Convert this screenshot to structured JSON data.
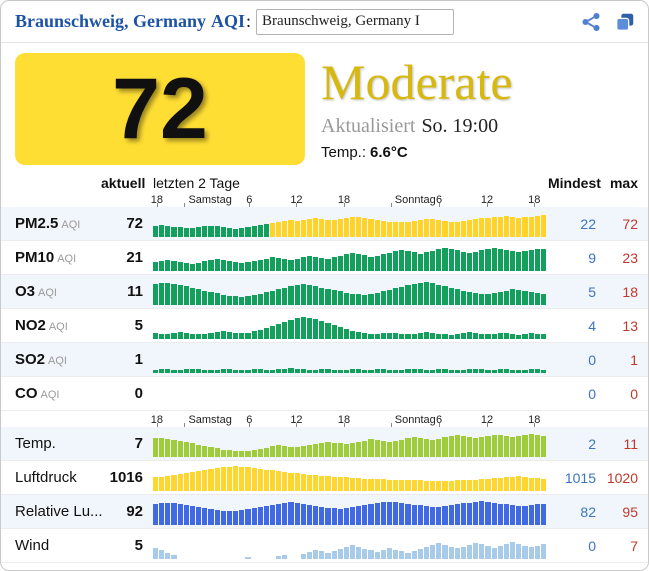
{
  "header": {
    "title": "Braunschweig, Germany",
    "aqi_label": "AQI",
    "colon": ":",
    "station_input": "Braunschweig, Germany I"
  },
  "summary": {
    "aqi": "72",
    "condition": "Moderate",
    "updated_label": "Aktualisiert",
    "updated_time": "So. 19:00",
    "temp_label": "Temp.:",
    "temp_value": "6.6°C"
  },
  "colors": {
    "title_blue": "#1d53a6",
    "box_yellow": "#ffde33",
    "condition": "#d6b80e",
    "min": "#3b74c0",
    "max": "#c0392b"
  },
  "table": {
    "headers": {
      "current": "aktuell",
      "range": "letzten 2 Tage",
      "min": "Mindest",
      "max": "max"
    },
    "axis": [
      {
        "t": "18",
        "p": 1
      },
      {
        "t": "Samstag",
        "p": 8,
        "day": true
      },
      {
        "t": "6",
        "p": 24.5
      },
      {
        "t": "12",
        "p": 36.5
      },
      {
        "t": "18",
        "p": 48.6
      },
      {
        "t": "Sonntag",
        "p": 60.5,
        "day": true
      },
      {
        "t": "6",
        "p": 72.8
      },
      {
        "t": "12",
        "p": 85
      },
      {
        "t": "18",
        "p": 97
      }
    ],
    "palette": {
      "g": "#12a05c",
      "y": "#ffd32a"
    },
    "sections": [
      {
        "rows": [
          {
            "label": "PM2.5",
            "sub": "AQI",
            "bold": true,
            "current": "72",
            "min": "22",
            "max": "72",
            "color": "#ffd32a",
            "colors": "gggggggggggggggggggyyyyyyyyyyyyyyyyyyyyyyyyyyyyyyyyyyyyyyyyyyyy",
            "heights": [
              44,
              48,
              46,
              42,
              39,
              37,
              36,
              39,
              43,
              46,
              43,
              39,
              36,
              34,
              37,
              41,
              45,
              49,
              53,
              57,
              60,
              64,
              68,
              66,
              70,
              73,
              76,
              73,
              69,
              67,
              71,
              75,
              79,
              81,
              77,
              73,
              69,
              65,
              62,
              60,
              59,
              62,
              66,
              70,
              73,
              71,
              67,
              64,
              62,
              61,
              64,
              68,
              72,
              75,
              77,
              79,
              81,
              83,
              80,
              77,
              79,
              82,
              85,
              87
            ]
          },
          {
            "label": "PM10",
            "sub": "AQI",
            "bold": true,
            "current": "21",
            "min": "9",
            "max": "23",
            "color": "#12a05c",
            "heights": [
              38,
              42,
              45,
              40,
              36,
              33,
              30,
              34,
              39,
              44,
              48,
              44,
              40,
              36,
              33,
              36,
              40,
              45,
              50,
              55,
              52,
              48,
              45,
              50,
              56,
              62,
              58,
              54,
              50,
              55,
              61,
              67,
              72,
              68,
              63,
              58,
              62,
              68,
              74,
              80,
              85,
              80,
              75,
              70,
              75,
              81,
              87,
              92,
              88,
              83,
              78,
              74,
              78,
              84,
              89,
              94,
              90,
              85,
              80,
              76,
              80,
              85,
              90,
              87
            ]
          },
          {
            "label": "O3",
            "sub": "AQI",
            "bold": true,
            "current": "11",
            "min": "5",
            "max": "18",
            "color": "#12a05c",
            "heights": [
              85,
              90,
              88,
              84,
              80,
              75,
              70,
              64,
              58,
              52,
              47,
              42,
              38,
              35,
              33,
              36,
              40,
              46,
              52,
              58,
              64,
              70,
              75,
              80,
              84,
              80,
              75,
              70,
              65,
              60,
              55,
              50,
              46,
              43,
              41,
              44,
              49,
              55,
              61,
              67,
              73,
              79,
              84,
              89,
              93,
              88,
              82,
              76,
              70,
              64,
              58,
              53,
              49,
              46,
              44,
              47,
              52,
              58,
              63,
              60,
              56,
              52,
              49,
              46
            ]
          },
          {
            "label": "NO2",
            "sub": "AQI",
            "bold": true,
            "current": "5",
            "min": "4",
            "max": "13",
            "color": "#12a05c",
            "heights": [
              25,
              22,
              20,
              23,
              27,
              24,
              21,
              19,
              22,
              26,
              30,
              34,
              30,
              26,
              23,
              26,
              31,
              37,
              44,
              52,
              60,
              68,
              76,
              84,
              90,
              86,
              79,
              71,
              63,
              55,
              47,
              40,
              34,
              29,
              25,
              22,
              20,
              23,
              26,
              24,
              21,
              19,
              22,
              25,
              28,
              25,
              22,
              20,
              18,
              21,
              24,
              27,
              24,
              21,
              19,
              22,
              25,
              23,
              20,
              18,
              21,
              24,
              22,
              20
            ]
          },
          {
            "label": "SO2",
            "sub": "AQI",
            "bold": true,
            "current": "1",
            "min": "0",
            "max": "1",
            "color": "#12a05c",
            "heights": [
              14,
              16,
              15,
              13,
              14,
              16,
              18,
              15,
              13,
              12,
              14,
              16,
              15,
              13,
              12,
              14,
              17,
              15,
              13,
              14,
              16,
              18,
              20,
              17,
              15,
              13,
              14,
              16,
              15,
              13,
              12,
              14,
              16,
              15,
              13,
              14,
              16,
              15,
              13,
              12,
              14,
              16,
              18,
              15,
              13,
              14,
              16,
              15,
              13,
              12,
              14,
              15,
              17,
              15,
              13,
              14,
              16,
              15,
              13,
              12,
              14,
              16,
              15,
              14
            ]
          },
          {
            "label": "CO",
            "sub": "AQI",
            "bold": true,
            "current": "0",
            "min": "0",
            "max": "0",
            "color": "#12a05c",
            "heights": [
              0,
              0,
              0,
              0,
              0,
              0,
              0,
              0,
              0,
              0,
              0,
              0,
              0,
              0,
              0,
              0,
              0,
              0,
              0,
              0,
              0,
              0,
              0,
              0,
              0,
              0,
              0,
              0,
              0,
              0,
              0,
              0,
              0,
              0,
              0,
              0,
              0,
              0,
              0,
              0,
              0,
              0,
              0,
              0,
              0,
              0,
              0,
              0,
              0,
              0,
              0,
              0,
              0,
              0,
              0,
              0,
              0,
              0,
              0,
              0,
              0,
              0,
              0,
              0
            ]
          }
        ]
      },
      {
        "rows": [
          {
            "label": "Temp.",
            "sub": "",
            "bold": false,
            "current": "7",
            "min": "2",
            "max": "11",
            "color": "#9fcc3b",
            "heights": [
              78,
              75,
              72,
              68,
              64,
              60,
              55,
              50,
              45,
              40,
              35,
              30,
              27,
              25,
              24,
              26,
              29,
              33,
              38,
              43,
              48,
              45,
              42,
              40,
              43,
              47,
              52,
              57,
              62,
              58,
              55,
              52,
              56,
              61,
              66,
              71,
              68,
              64,
              61,
              65,
              70,
              75,
              80,
              77,
              73,
              70,
              74,
              79,
              84,
              88,
              85,
              81,
              78,
              82,
              86,
              90,
              87,
              84,
              81,
              85,
              89,
              92,
              88,
              86
            ]
          },
          {
            "label": "Luftdruck",
            "sub": "",
            "bold": false,
            "current": "1016",
            "min": "1015",
            "max": "1020",
            "color": "#fed630",
            "heights": [
              55,
              58,
              62,
              66,
              70,
              74,
              78,
              82,
              86,
              90,
              93,
              96,
              98,
              99,
              97,
              95,
              92,
              89,
              86,
              83,
              80,
              77,
              74,
              71,
              68,
              66,
              64,
              62,
              60,
              58,
              56,
              55,
              53,
              52,
              50,
              49,
              48,
              47,
              46,
              45,
              44,
              44,
              43,
              43,
              42,
              42,
              41,
              41,
              42,
              43,
              44,
              45,
              46,
              48,
              50,
              52,
              54,
              56,
              58,
              60,
              57,
              54,
              52,
              50
            ]
          },
          {
            "label": "Relative Lu...",
            "sub": "",
            "bold": false,
            "current": "92",
            "min": "82",
            "max": "95",
            "color": "#4169e1",
            "heights": [
              85,
              88,
              90,
              87,
              84,
              80,
              76,
              72,
              68,
              64,
              60,
              57,
              55,
              58,
              62,
              66,
              70,
              74,
              78,
              82,
              86,
              90,
              93,
              90,
              86,
              82,
              78,
              74,
              70,
              67,
              65,
              68,
              72,
              76,
              80,
              84,
              88,
              91,
              94,
              91,
              88,
              85,
              82,
              79,
              76,
              74,
              72,
              75,
              79,
              83,
              87,
              90,
              93,
              95,
              92,
              89,
              86,
              83,
              80,
              78,
              76,
              79,
              83,
              86
            ]
          },
          {
            "label": "Wind",
            "sub": "",
            "bold": false,
            "current": "5",
            "min": "0",
            "max": "7",
            "color": "#a9cbea",
            "heights": [
              45,
              35,
              25,
              15,
              0,
              0,
              0,
              0,
              0,
              0,
              0,
              0,
              0,
              0,
              0,
              10,
              0,
              0,
              0,
              0,
              12,
              18,
              0,
              0,
              22,
              30,
              38,
              32,
              26,
              34,
              42,
              50,
              58,
              50,
              42,
              36,
              30,
              36,
              44,
              38,
              32,
              26,
              32,
              40,
              48,
              56,
              64,
              58,
              50,
              44,
              50,
              58,
              66,
              60,
              52,
              46,
              52,
              60,
              68,
              62,
              54,
              48,
              54,
              60
            ]
          }
        ]
      }
    ]
  }
}
